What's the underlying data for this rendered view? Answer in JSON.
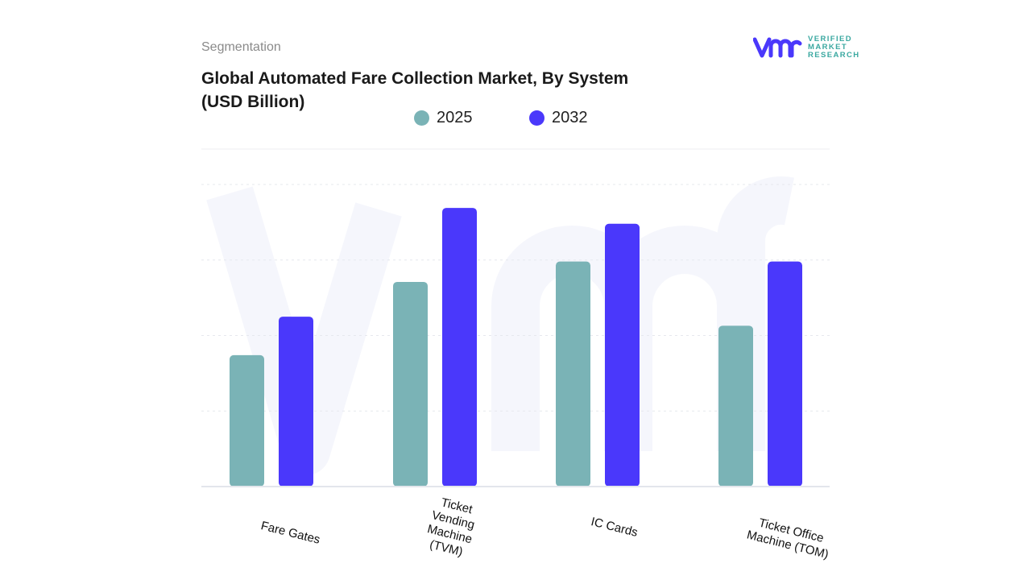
{
  "header": {
    "section": "Segmentation",
    "title_line1": "Global Automated Fare Collection Market, By System",
    "title_line2": "(USD Billion)"
  },
  "logo": {
    "text_line1": "VERIFIED",
    "text_line2": "MARKET",
    "text_line3": "RESEARCH",
    "mark": "vmr"
  },
  "chart_data": {
    "type": "bar",
    "title": "Global Automated Fare Collection Market, By System (USD Billion)",
    "xlabel": "",
    "ylabel": "",
    "categories": [
      "Fare Gates",
      "Ticket Vending Machine (TVM)",
      "IC Cards",
      "Ticket Office Machine (TOM)"
    ],
    "category_lines": [
      [
        "Fare Gates"
      ],
      [
        "Ticket",
        "Vending",
        "Machine",
        "(TVM)"
      ],
      [
        "IC Cards"
      ],
      [
        "Ticket Office",
        "Machine (TOM)"
      ]
    ],
    "series": [
      {
        "name": "2025",
        "color": "#7ab3b6",
        "values": [
          1.74,
          2.71,
          2.98,
          2.13
        ]
      },
      {
        "name": "2032",
        "color": "#4a38fb",
        "values": [
          2.25,
          3.69,
          3.48,
          2.98
        ]
      }
    ],
    "ylim": [
      0,
      4
    ],
    "y_tick_labels_shown": false,
    "grid": true,
    "legend_position": "top"
  }
}
